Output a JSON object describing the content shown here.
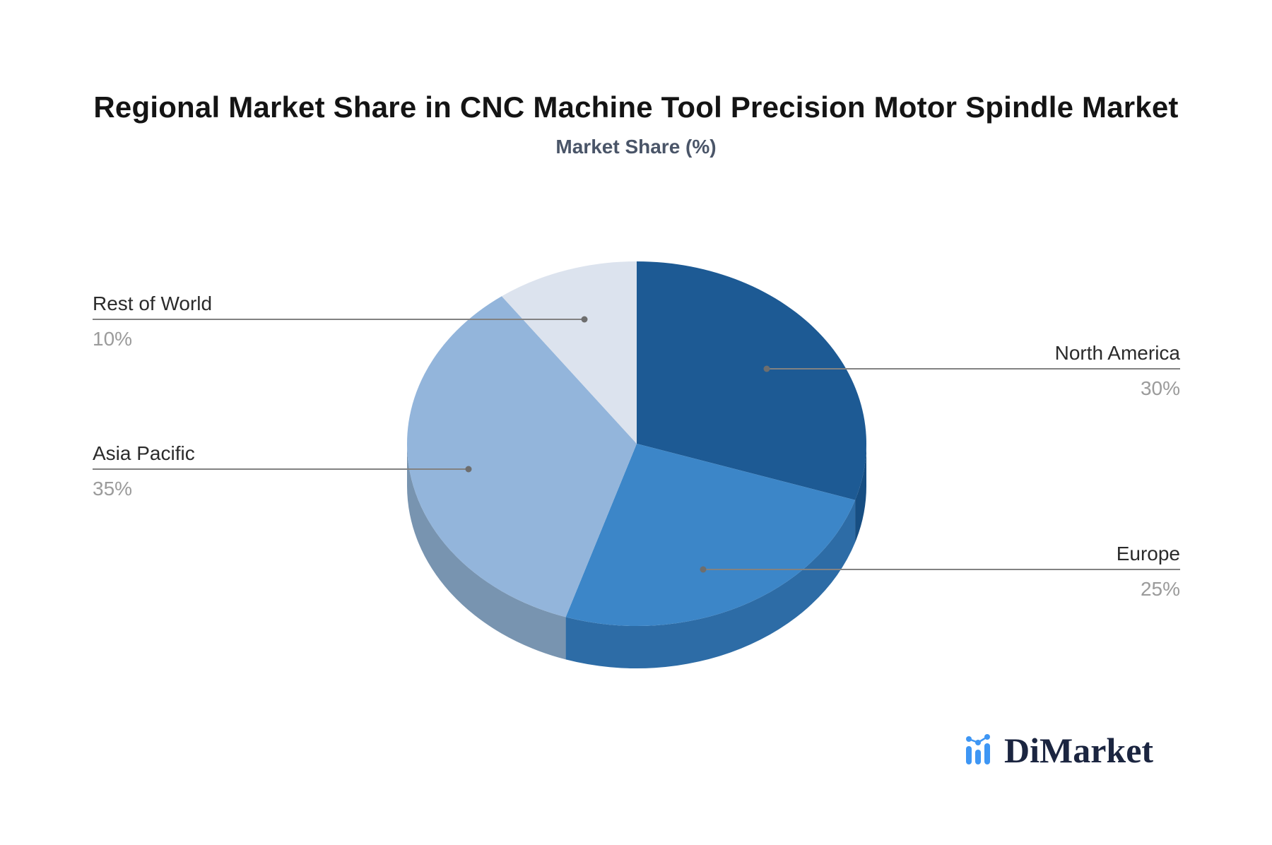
{
  "header": {
    "title": "Regional Market Share in CNC Machine Tool Precision Motor Spindle Market",
    "subtitle": "Market Share (%)"
  },
  "chart_data": {
    "type": "pie",
    "style": "3d",
    "title": "Regional Market Share in CNC Machine Tool Precision Motor Spindle Market",
    "subtitle": "Market Share (%)",
    "unit": "%",
    "start_angle_deg": 0,
    "direction": "clockwise",
    "categories": [
      "North America",
      "Europe",
      "Asia Pacific",
      "Rest of World"
    ],
    "values": [
      30,
      25,
      35,
      10
    ],
    "labels": [
      "30%",
      "25%",
      "35%",
      "10%"
    ],
    "colors": [
      "#1d5a94",
      "#3c86c8",
      "#93b5db",
      "#dce3ee"
    ],
    "side_colors": [
      "#174e82",
      "#2d6ca6",
      "#7894b0",
      "#c3cede"
    ],
    "legend_position": "callout-labels",
    "callout_sides": [
      "right",
      "right",
      "left",
      "left"
    ]
  },
  "branding": {
    "logo_text": "DiMarket",
    "logo_icon": "bar-chart-trend-icon",
    "logo_icon_color": "#3e96f4",
    "logo_text_color": "#1b2540"
  },
  "palette": {
    "background": "#ffffff",
    "title_color": "#141414",
    "subtitle_color": "#4a5568",
    "callout_name_color": "#2b2b2b",
    "callout_pct_color": "#9b9b9b",
    "leader_line_color": "#828282",
    "leader_dot_color": "#6e6e6e"
  }
}
